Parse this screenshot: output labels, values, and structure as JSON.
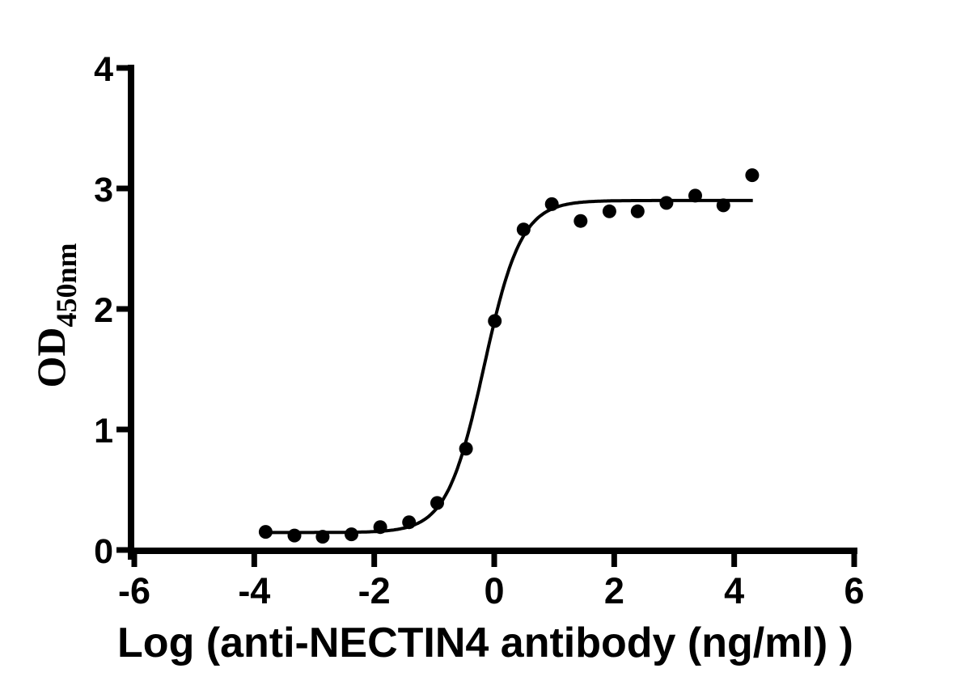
{
  "chart_data": {
    "type": "scatter",
    "title": "",
    "xlabel": "Log（anti-NECTIN4 antibody（ng/ml） ）",
    "ylabel": "OD450nm",
    "ylabel_main": "OD",
    "ylabel_sub": "450nm",
    "xlim": [
      -6,
      6
    ],
    "ylim": [
      0,
      4
    ],
    "x_ticks": [
      "-6",
      "-4",
      "-2",
      "0",
      "2",
      "4",
      "6"
    ],
    "x_tick_values": [
      -6,
      -4,
      -2,
      0,
      2,
      4,
      6
    ],
    "y_ticks": [
      "0",
      "1",
      "2",
      "3",
      "4"
    ],
    "y_tick_values": [
      0,
      1,
      2,
      3,
      4
    ],
    "grid": false,
    "legend_position": "none",
    "marker_color": "#000000",
    "line_color": "#000000",
    "axis_color": "#000000",
    "background_color": "#ffffff",
    "series": [
      {
        "marker": "circle",
        "x": [
          -3.81,
          -3.33,
          -2.86,
          -2.38,
          -1.9,
          -1.42,
          -0.95,
          -0.47,
          0.01,
          0.49,
          0.96,
          1.44,
          1.92,
          2.39,
          2.87,
          3.35,
          3.82,
          4.3
        ],
        "y": [
          0.15,
          0.12,
          0.11,
          0.13,
          0.19,
          0.23,
          0.39,
          0.84,
          1.9,
          2.66,
          2.87,
          2.73,
          2.81,
          2.81,
          2.88,
          2.94,
          2.86,
          3.11
        ]
      }
    ],
    "fit_curve": {
      "model": "4PL sigmoid",
      "bottom": 0.145,
      "top": 2.9,
      "log_ec50": -0.17,
      "hill_slope": 1.4,
      "x_range": [
        -3.81,
        4.32
      ]
    }
  }
}
